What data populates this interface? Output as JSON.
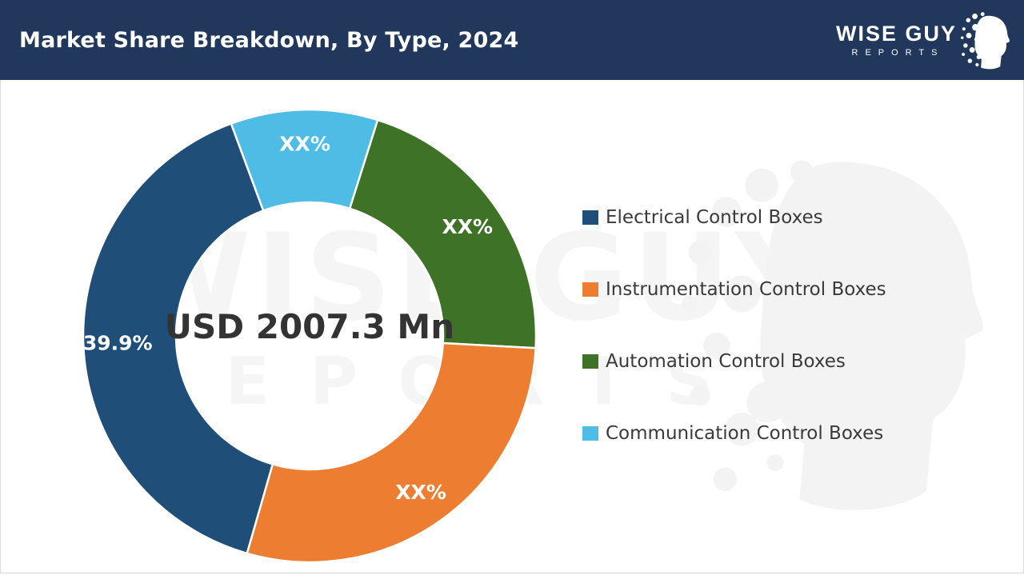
{
  "header": {
    "title": "Market Share Breakdown, By Type, 2024",
    "background_color": "#21375C",
    "logo": {
      "line1": "WISE GUY",
      "line2": "REPORTS"
    }
  },
  "watermark": {
    "line1": "WISE GUY",
    "line2": "REPORTS"
  },
  "chart_data": {
    "type": "pie",
    "subtype": "donut",
    "title": "Market Share Breakdown, By Type, 2024",
    "center_label": "USD 2007.3 Mn",
    "start_angle_deg": -20.3,
    "inner_radius_ratio": 0.59,
    "label_radius_ratio": 0.848,
    "legend_position": "right",
    "segments": [
      {
        "name": "Electrical Control Boxes",
        "value": 39.9,
        "label": "39.9%",
        "color": "#1F4E79"
      },
      {
        "name": "Instrumentation Control Boxes",
        "value": 28.6,
        "label": "XX%",
        "color": "#ED7D31"
      },
      {
        "name": "Automation Control Boxes",
        "value": 21.0,
        "label": "XX%",
        "color": "#3E7227"
      },
      {
        "name": "Communication Control Boxes",
        "value": 10.5,
        "label": "XX%",
        "color": "#4EBCE4"
      }
    ]
  }
}
